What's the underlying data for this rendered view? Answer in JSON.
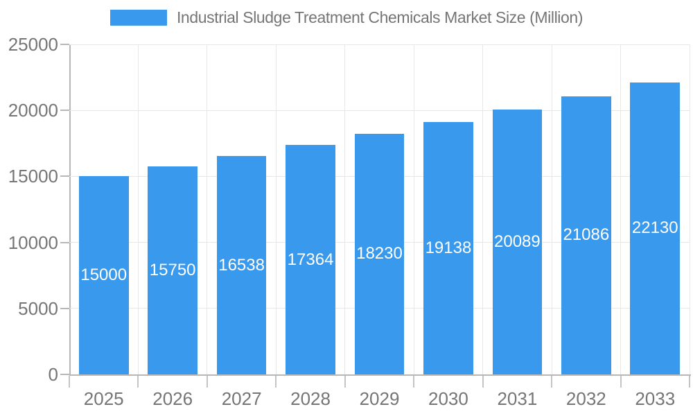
{
  "chart_data": {
    "type": "bar",
    "title": "Industrial Sludge Treatment Chemicals Market Size (Million)",
    "categories": [
      "2025",
      "2026",
      "2027",
      "2028",
      "2029",
      "2030",
      "2031",
      "2032",
      "2033"
    ],
    "values": [
      15000,
      15750,
      16538,
      17364,
      18230,
      19138,
      20089,
      21086,
      22130
    ],
    "value_labels": [
      "15000",
      "15750",
      "16538",
      "17364",
      "18230",
      "19138",
      "20089",
      "21086",
      "22130"
    ],
    "yticks": [
      0,
      5000,
      10000,
      15000,
      20000,
      25000
    ],
    "ytick_labels": [
      "0",
      "5000",
      "10000",
      "15000",
      "20000",
      "25000"
    ],
    "ylim": [
      0,
      25000
    ],
    "xlabel": "",
    "ylabel": "",
    "grid": true,
    "legend_position": "top",
    "bar_color": "#3999EC",
    "bar_label_color": "#ffffff",
    "axis_text_color": "#757575",
    "axis_line_color": "#b7b7b7",
    "grid_color": "#e7e7e7",
    "background_color": "#ffffff"
  }
}
